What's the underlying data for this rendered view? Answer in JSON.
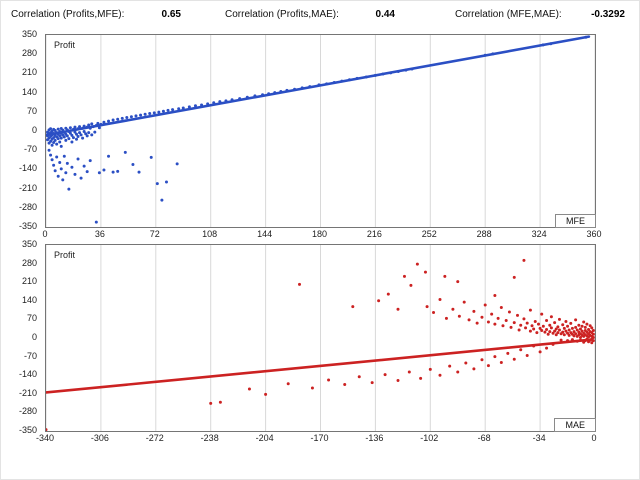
{
  "header": {
    "items": [
      {
        "label": "Correlation (Profits,MFE):",
        "value": "0.65"
      },
      {
        "label": "Correlation (Profits,MAE):",
        "value": "0.44"
      },
      {
        "label": "Correlation (MFE,MAE):",
        "value": "-0.3292"
      }
    ]
  },
  "chart_data": [
    {
      "type": "scatter",
      "name": "profit-vs-mfe",
      "xlabel": "MFE",
      "ylabel": "Profit",
      "color": "#2b4fc4",
      "grid_color": "#d8d8d8",
      "xlim": [
        0,
        360
      ],
      "ylim": [
        -350,
        350
      ],
      "x_ticks": [
        0,
        36,
        72,
        108,
        144,
        180,
        216,
        252,
        288,
        324,
        360
      ],
      "y_ticks": [
        350,
        280,
        210,
        140,
        70,
        0,
        -70,
        -140,
        -210,
        -280,
        -350
      ],
      "trend_line": {
        "x1": 0,
        "y1": -15,
        "x2": 356,
        "y2": 344
      },
      "points": [
        [
          1,
          -4
        ],
        [
          1,
          -18
        ],
        [
          1,
          -32
        ],
        [
          2,
          4
        ],
        [
          2,
          -10
        ],
        [
          2,
          -26
        ],
        [
          2,
          -44
        ],
        [
          3,
          8
        ],
        [
          3,
          -6
        ],
        [
          3,
          -20
        ],
        [
          3,
          -38
        ],
        [
          4,
          -1
        ],
        [
          4,
          -14
        ],
        [
          4,
          -30
        ],
        [
          4,
          -52
        ],
        [
          5,
          6
        ],
        [
          5,
          -9
        ],
        [
          5,
          -24
        ],
        [
          5,
          -42
        ],
        [
          6,
          2
        ],
        [
          6,
          -16
        ],
        [
          6,
          -34
        ],
        [
          7,
          -6
        ],
        [
          7,
          -22
        ],
        [
          7,
          -48
        ],
        [
          8,
          7
        ],
        [
          8,
          -12
        ],
        [
          8,
          -28
        ],
        [
          9,
          -2
        ],
        [
          9,
          -18
        ],
        [
          9,
          -40
        ],
        [
          10,
          9
        ],
        [
          10,
          -8
        ],
        [
          10,
          -26
        ],
        [
          10,
          -56
        ],
        [
          11,
          3
        ],
        [
          11,
          -15
        ],
        [
          12,
          -5
        ],
        [
          12,
          -22
        ],
        [
          13,
          10
        ],
        [
          13,
          -12
        ],
        [
          13,
          -34
        ],
        [
          14,
          4
        ],
        [
          14,
          -18
        ],
        [
          15,
          -2
        ],
        [
          15,
          -28
        ],
        [
          16,
          12
        ],
        [
          16,
          -8
        ],
        [
          17,
          -16
        ],
        [
          17,
          -40
        ],
        [
          18,
          6
        ],
        [
          18,
          -24
        ],
        [
          19,
          14
        ],
        [
          19,
          -4
        ],
        [
          20,
          -12
        ],
        [
          20,
          -30
        ],
        [
          21,
          8
        ],
        [
          21,
          -20
        ],
        [
          22,
          16
        ],
        [
          22,
          -6
        ],
        [
          23,
          -14
        ],
        [
          24,
          10
        ],
        [
          24,
          -26
        ],
        [
          25,
          18
        ],
        [
          25,
          -2
        ],
        [
          26,
          -10
        ],
        [
          27,
          14
        ],
        [
          27,
          -18
        ],
        [
          28,
          22
        ],
        [
          28,
          -6
        ],
        [
          29,
          10
        ],
        [
          30,
          -14
        ],
        [
          30,
          26
        ],
        [
          31,
          16
        ],
        [
          32,
          -4
        ],
        [
          33,
          20
        ],
        [
          34,
          28
        ],
        [
          35,
          12
        ],
        [
          36,
          24
        ],
        [
          2,
          -70
        ],
        [
          3,
          -88
        ],
        [
          4,
          -105
        ],
        [
          5,
          -125
        ],
        [
          6,
          -145
        ],
        [
          7,
          -95
        ],
        [
          8,
          -165
        ],
        [
          9,
          -115
        ],
        [
          10,
          -138
        ],
        [
          11,
          -178
        ],
        [
          12,
          -92
        ],
        [
          13,
          -152
        ],
        [
          14,
          -118
        ],
        [
          15,
          -212
        ],
        [
          17,
          -132
        ],
        [
          19,
          -158
        ],
        [
          21,
          -102
        ],
        [
          23,
          -172
        ],
        [
          25,
          -128
        ],
        [
          27,
          -148
        ],
        [
          29,
          -108
        ],
        [
          33,
          -332
        ],
        [
          35,
          -152
        ],
        [
          38,
          -142
        ],
        [
          41,
          -92
        ],
        [
          44,
          -150
        ],
        [
          47,
          -147
        ],
        [
          52,
          -78
        ],
        [
          57,
          -122
        ],
        [
          61,
          -150
        ],
        [
          69,
          -96
        ],
        [
          73,
          -192
        ],
        [
          76,
          -252
        ],
        [
          79,
          -186
        ],
        [
          86,
          -120
        ],
        [
          38,
          32
        ],
        [
          41,
          36
        ],
        [
          44,
          40
        ],
        [
          47,
          43
        ],
        [
          50,
          46
        ],
        [
          53,
          49
        ],
        [
          56,
          52
        ],
        [
          59,
          55
        ],
        [
          62,
          58
        ],
        [
          65,
          61
        ],
        [
          68,
          64
        ],
        [
          71,
          66
        ],
        [
          74,
          69
        ],
        [
          77,
          72
        ],
        [
          80,
          75
        ],
        [
          83,
          78
        ],
        [
          87,
          81
        ],
        [
          90,
          84
        ],
        [
          94,
          88
        ],
        [
          98,
          92
        ],
        [
          102,
          95
        ],
        [
          106,
          99
        ],
        [
          110,
          103
        ],
        [
          114,
          107
        ],
        [
          118,
          110
        ],
        [
          122,
          114
        ],
        [
          127,
          118
        ],
        [
          132,
          123
        ],
        [
          137,
          128
        ],
        [
          142,
          132
        ],
        [
          146,
          136
        ],
        [
          150,
          140
        ],
        [
          154,
          144
        ],
        [
          158,
          148
        ],
        [
          163,
          152
        ],
        [
          168,
          157
        ],
        [
          173,
          162
        ],
        [
          179,
          168
        ],
        [
          184,
          172
        ],
        [
          189,
          177
        ],
        [
          194,
          182
        ],
        [
          199,
          187
        ],
        [
          204,
          192
        ],
        [
          210,
          197
        ],
        [
          216,
          203
        ],
        [
          221,
          208
        ],
        [
          226,
          212
        ],
        [
          231,
          217
        ],
        [
          236,
          222
        ],
        [
          240,
          226
        ],
        [
          288,
          276
        ],
        [
          293,
          281
        ],
        [
          326,
          314
        ],
        [
          331,
          318
        ],
        [
          354,
          342
        ]
      ]
    },
    {
      "type": "scatter",
      "name": "profit-vs-mae",
      "xlabel": "MAE",
      "ylabel": "Profit",
      "color": "#cc2222",
      "grid_color": "#d8d8d8",
      "xlim": [
        -340,
        0
      ],
      "ylim": [
        -350,
        350
      ],
      "x_ticks": [
        -340,
        -306,
        -272,
        -238,
        -204,
        -170,
        -136,
        -102,
        -68,
        -34,
        0
      ],
      "y_ticks": [
        350,
        280,
        210,
        140,
        70,
        0,
        -70,
        -140,
        -210,
        -280,
        -350
      ],
      "trend_line": {
        "x1": -340,
        "y1": -205,
        "x2": -2,
        "y2": -6
      },
      "points": [
        [
          -1,
          2
        ],
        [
          -1,
          14
        ],
        [
          -1,
          -10
        ],
        [
          -1,
          28
        ],
        [
          -2,
          6
        ],
        [
          -2,
          -4
        ],
        [
          -2,
          20
        ],
        [
          -2,
          38
        ],
        [
          -2,
          -18
        ],
        [
          -3,
          10
        ],
        [
          -3,
          24
        ],
        [
          -3,
          -8
        ],
        [
          -3,
          46
        ],
        [
          -4,
          4
        ],
        [
          -4,
          16
        ],
        [
          -4,
          32
        ],
        [
          -4,
          -14
        ],
        [
          -5,
          8
        ],
        [
          -5,
          22
        ],
        [
          -5,
          52
        ],
        [
          -5,
          -4
        ],
        [
          -6,
          12
        ],
        [
          -6,
          28
        ],
        [
          -6,
          -10
        ],
        [
          -6,
          40
        ],
        [
          -7,
          6
        ],
        [
          -7,
          18
        ],
        [
          -7,
          60
        ],
        [
          -7,
          -16
        ],
        [
          -8,
          10
        ],
        [
          -8,
          26
        ],
        [
          -8,
          44
        ],
        [
          -9,
          2
        ],
        [
          -9,
          16
        ],
        [
          -9,
          34
        ],
        [
          -9,
          -8
        ],
        [
          -10,
          12
        ],
        [
          -10,
          48
        ],
        [
          -10,
          22
        ],
        [
          -11,
          6
        ],
        [
          -11,
          30
        ],
        [
          -11,
          -12
        ],
        [
          -12,
          16
        ],
        [
          -12,
          40
        ],
        [
          -12,
          68
        ],
        [
          -13,
          8
        ],
        [
          -13,
          24
        ],
        [
          -14,
          14
        ],
        [
          -14,
          36
        ],
        [
          -14,
          -6
        ],
        [
          -15,
          20
        ],
        [
          -15,
          55
        ],
        [
          -16,
          10
        ],
        [
          -16,
          30
        ],
        [
          -17,
          18
        ],
        [
          -17,
          44
        ],
        [
          -17,
          -10
        ],
        [
          -18,
          26
        ],
        [
          -18,
          62
        ],
        [
          -19,
          12
        ],
        [
          -19,
          36
        ],
        [
          -20,
          22
        ],
        [
          -20,
          50
        ],
        [
          -21,
          16
        ],
        [
          -21,
          -8
        ],
        [
          -22,
          30
        ],
        [
          -22,
          70
        ],
        [
          -23,
          20
        ],
        [
          -23,
          42
        ],
        [
          -24,
          12
        ],
        [
          -24,
          34
        ],
        [
          -25,
          26
        ],
        [
          -25,
          58
        ],
        [
          -26,
          18
        ],
        [
          -27,
          38
        ],
        [
          -27,
          80
        ],
        [
          -28,
          24
        ],
        [
          -28,
          48
        ],
        [
          -29,
          14
        ],
        [
          -30,
          32
        ],
        [
          -30,
          66
        ],
        [
          -31,
          22
        ],
        [
          -32,
          44
        ],
        [
          -33,
          28
        ],
        [
          -33,
          90
        ],
        [
          -34,
          36
        ],
        [
          -35,
          52
        ],
        [
          -36,
          20
        ],
        [
          -37,
          62
        ],
        [
          -38,
          34
        ],
        [
          -39,
          46
        ],
        [
          -40,
          26
        ],
        [
          -40,
          105
        ],
        [
          -42,
          56
        ],
        [
          -43,
          38
        ],
        [
          -44,
          72
        ],
        [
          -46,
          48
        ],
        [
          -47,
          30
        ],
        [
          -48,
          85
        ],
        [
          -50,
          58
        ],
        [
          -52,
          40
        ],
        [
          -53,
          98
        ],
        [
          -55,
          66
        ],
        [
          -57,
          46
        ],
        [
          -58,
          115
        ],
        [
          -60,
          74
        ],
        [
          -62,
          52
        ],
        [
          -64,
          90
        ],
        [
          -66,
          60
        ],
        [
          -68,
          124
        ],
        [
          -70,
          78
        ],
        [
          -73,
          56
        ],
        [
          -75,
          100
        ],
        [
          -78,
          68
        ],
        [
          -81,
          135
        ],
        [
          -84,
          82
        ],
        [
          -88,
          108
        ],
        [
          -92,
          74
        ],
        [
          -96,
          145
        ],
        [
          -100,
          96
        ],
        [
          -104,
          118
        ],
        [
          -44,
          292
        ],
        [
          -50,
          228
        ],
        [
          -62,
          160
        ],
        [
          -85,
          212
        ],
        [
          -93,
          232
        ],
        [
          -105,
          248
        ],
        [
          -110,
          278
        ],
        [
          -114,
          198
        ],
        [
          -118,
          232
        ],
        [
          -122,
          108
        ],
        [
          -128,
          165
        ],
        [
          -134,
          140
        ],
        [
          -150,
          118
        ],
        [
          -183,
          202
        ],
        [
          -26,
          -24
        ],
        [
          -30,
          -38
        ],
        [
          -34,
          -52
        ],
        [
          -38,
          -30
        ],
        [
          -42,
          -66
        ],
        [
          -46,
          -44
        ],
        [
          -50,
          -80
        ],
        [
          -54,
          -58
        ],
        [
          -58,
          -92
        ],
        [
          -62,
          -70
        ],
        [
          -66,
          -104
        ],
        [
          -70,
          -82
        ],
        [
          -75,
          -116
        ],
        [
          -80,
          -94
        ],
        [
          -85,
          -128
        ],
        [
          -90,
          -106
        ],
        [
          -96,
          -140
        ],
        [
          -102,
          -118
        ],
        [
          -108,
          -152
        ],
        [
          -115,
          -128
        ],
        [
          -122,
          -160
        ],
        [
          -130,
          -138
        ],
        [
          -138,
          -168
        ],
        [
          -146,
          -146
        ],
        [
          -155,
          -175
        ],
        [
          -165,
          -158
        ],
        [
          -175,
          -188
        ],
        [
          -190,
          -172
        ],
        [
          -204,
          -212
        ],
        [
          -214,
          -192
        ],
        [
          -232,
          -242
        ],
        [
          -238,
          -246
        ],
        [
          -340,
          -345
        ]
      ]
    }
  ]
}
